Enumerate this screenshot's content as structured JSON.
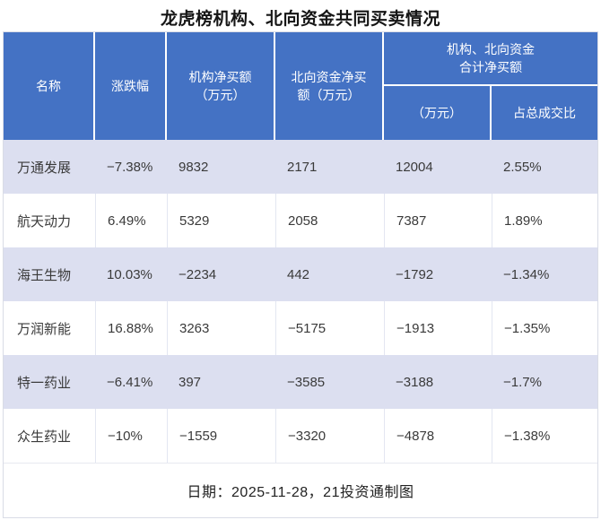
{
  "title": "龙虎榜机构、北向资金共同买卖情况",
  "table": {
    "headers": {
      "name": "名称",
      "change": "涨跌幅",
      "inst_net_buy": "机构净买额\n（万元）",
      "north_net_buy": "北向资金净买\n额（万元）",
      "combined_group": "机构、北向资金\n合计净买额",
      "combined_amount": "（万元）",
      "combined_ratio": "占总成交比"
    },
    "rows": [
      {
        "name": "万通发展",
        "change": "−7.38%",
        "inst": "9832",
        "north": "2171",
        "total": "12004",
        "ratio": "2.55%"
      },
      {
        "name": "航天动力",
        "change": "6.49%",
        "inst": "5329",
        "north": "2058",
        "total": "7387",
        "ratio": "1.89%"
      },
      {
        "name": "海王生物",
        "change": "10.03%",
        "inst": "−2234",
        "north": "442",
        "total": "−1792",
        "ratio": "−1.34%"
      },
      {
        "name": "万润新能",
        "change": "16.88%",
        "inst": "3263",
        "north": "−5175",
        "total": "−1913",
        "ratio": "−1.35%"
      },
      {
        "name": "特一药业",
        "change": "−6.41%",
        "inst": "397",
        "north": "−3585",
        "total": "−3188",
        "ratio": "−1.7%"
      },
      {
        "name": "众生药业",
        "change": "−10%",
        "inst": "−1559",
        "north": "−3320",
        "total": "−4878",
        "ratio": "−1.38%"
      }
    ]
  },
  "footer": {
    "text": "日期：2025-11-28，21投资通制图"
  },
  "colors": {
    "header_bg": "#4472c4",
    "header_text": "#ffffff",
    "band_row_bg": "#dcdff0",
    "plain_row_bg": "#ffffff",
    "data_text": "#3a3a3a",
    "divider": "#e3e6f1",
    "outer_border": "#d9dce6"
  },
  "chart_data": {
    "type": "table",
    "title": "龙虎榜机构、北向资金共同买卖情况",
    "columns": [
      "名称",
      "涨跌幅",
      "机构净买额（万元）",
      "北向资金净买额（万元）",
      "机构、北向资金合计净买额（万元）",
      "机构、北向资金合计净买额占总成交比"
    ],
    "rows": [
      [
        "万通发展",
        "−7.38%",
        9832,
        2171,
        12004,
        "2.55%"
      ],
      [
        "航天动力",
        "6.49%",
        5329,
        2058,
        7387,
        "1.89%"
      ],
      [
        "海王生物",
        "10.03%",
        -2234,
        442,
        -1792,
        "−1.34%"
      ],
      [
        "万润新能",
        "16.88%",
        3263,
        -5175,
        -1913,
        "−1.35%"
      ],
      [
        "特一药业",
        "−6.41%",
        397,
        -3585,
        -3188,
        "−1.7%"
      ],
      [
        "众生药业",
        "−10%",
        -1559,
        -3320,
        -4878,
        "−1.38%"
      ]
    ],
    "note": "日期：2025-11-28，21投资通制图",
    "layout_hints": {
      "banded_rows": true,
      "header_merged_last_two_columns": true
    }
  }
}
